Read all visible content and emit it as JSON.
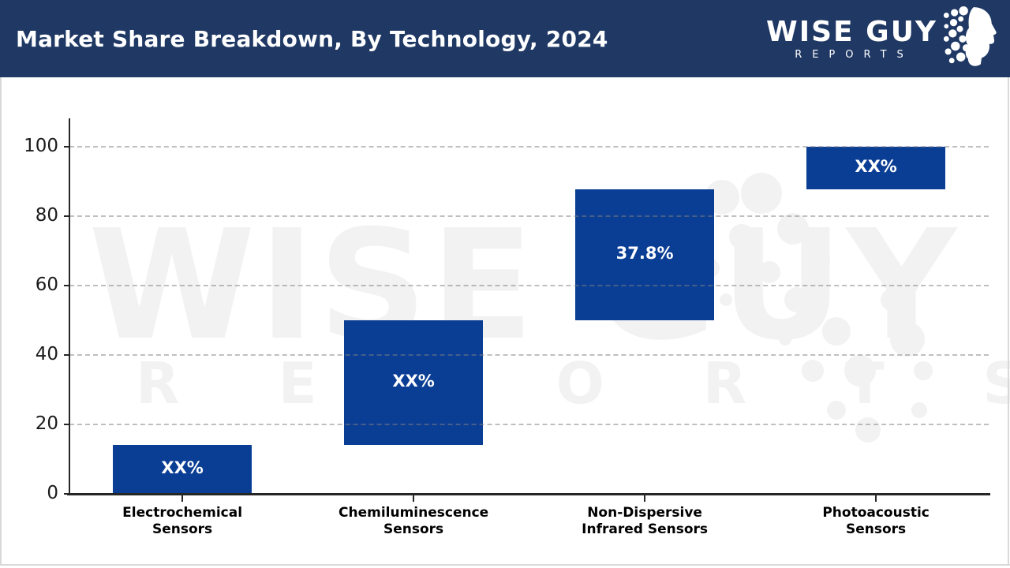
{
  "header": {
    "title": "Market Share Breakdown, By Technology, 2024",
    "logo": {
      "name_line": "WISE GUY",
      "sub_line": "REPORTS"
    },
    "colors": {
      "background": "#1f3864",
      "text": "#ffffff"
    }
  },
  "watermark": {
    "line1": "WISE GUY",
    "line2": "R E P O R T S"
  },
  "chart_data": {
    "type": "bar",
    "variant": "floating-segment waterfall (market share breakdown, segments sum to 100%)",
    "title": "Market Share Breakdown, By Technology, 2024",
    "categories": [
      "Electrochemical Sensors",
      "Chemiluminescence Sensors",
      "Non-Dispersive Infrared Sensors",
      "Photoacoustic Sensors"
    ],
    "category_labels_two_line": [
      [
        "Electrochemical",
        "Sensors"
      ],
      [
        "Chemiluminescence",
        "Sensors"
      ],
      [
        "Non-Dispersive",
        "Infrared Sensors"
      ],
      [
        "Photoacoustic",
        "Sensors"
      ]
    ],
    "bars": [
      {
        "category": "Electrochemical Sensors",
        "from": 0,
        "to": 14,
        "value_label": "XX%"
      },
      {
        "category": "Chemiluminescence Sensors",
        "from": 14,
        "to": 50,
        "value_label": "XX%"
      },
      {
        "category": "Non-Dispersive Infrared Sensors",
        "from": 50,
        "to": 87.8,
        "value_label": "37.8%"
      },
      {
        "category": "Photoacoustic Sensors",
        "from": 87.8,
        "to": 100,
        "value_label": "XX%"
      }
    ],
    "xlabel": "",
    "ylabel": "",
    "ylim": [
      0,
      100
    ],
    "yticks": [
      0,
      20,
      40,
      60,
      80,
      100
    ],
    "grid": "dashed horizontal gridlines, drawn over bars",
    "legend": "none",
    "colors": {
      "bar": "#0a3e94",
      "bar_label": "#ffffff",
      "grid": "#c4c4c4",
      "axis": "#262626",
      "tick_label": "#1a1a1a"
    }
  }
}
